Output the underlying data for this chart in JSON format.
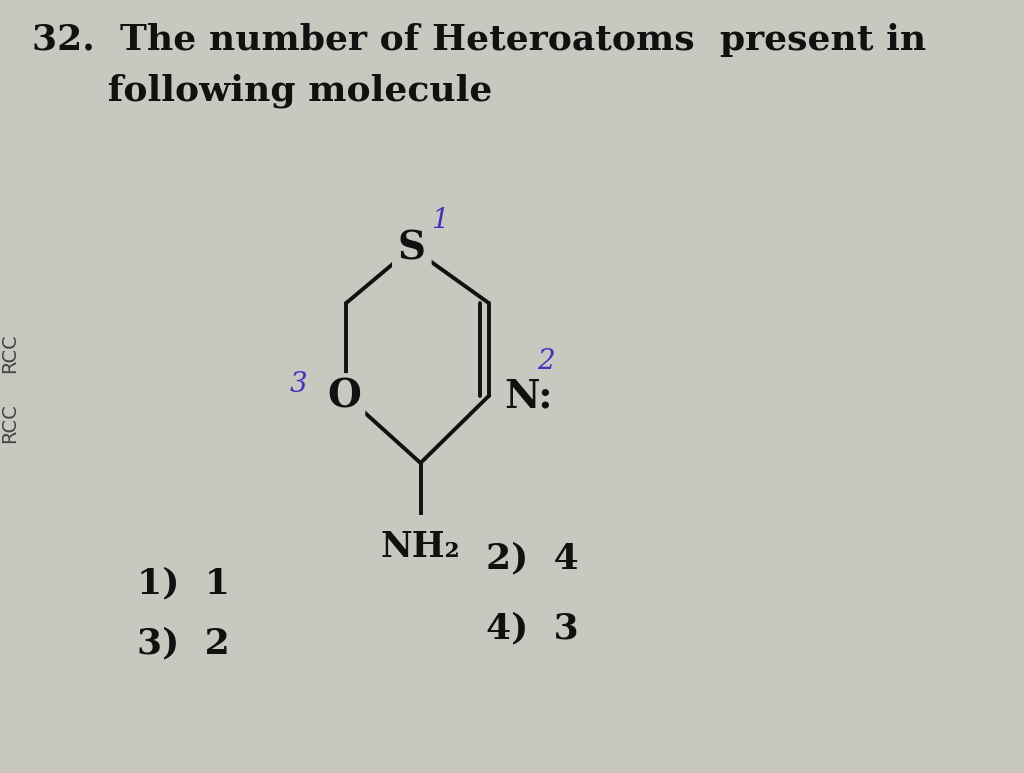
{
  "background_color": "#c8c8c0",
  "title_line1": "32.  The number of Heteroatoms  present in",
  "title_line2": "      following molecule",
  "title_fontsize": 26,
  "title_color": "#111111",
  "options": [
    "1)  1",
    "2)  4",
    "3)  2",
    "4)  3"
  ],
  "options_fontsize": 26,
  "ring_color": "#111111",
  "atom_S_label": "S",
  "atom_N_label": "N:",
  "atom_O_label": "O",
  "nh2_label": "NH₂",
  "annotation_color": "#4433bb",
  "annotation_1": "1",
  "annotation_2": "2",
  "annotation_3": "3"
}
